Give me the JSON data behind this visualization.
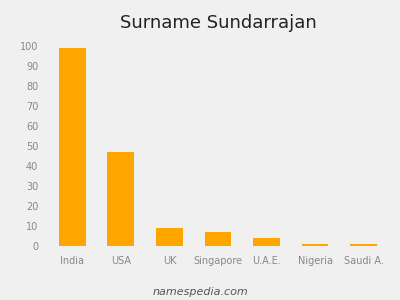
{
  "title": "Surname Sundarrajan",
  "categories": [
    "India",
    "USA",
    "UK",
    "Singapore",
    "U.A.E.",
    "Nigeria",
    "Saudi A."
  ],
  "values": [
    99,
    47,
    9,
    7,
    4,
    1,
    1
  ],
  "bar_color": "#FFA500",
  "ylim": [
    0,
    105
  ],
  "yticks": [
    0,
    10,
    20,
    30,
    40,
    50,
    60,
    70,
    80,
    90,
    100
  ],
  "grid_ticks": [
    20,
    40,
    60,
    80,
    100
  ],
  "background_color": "#f0f0f0",
  "title_fontsize": 13,
  "tick_fontsize": 7,
  "footer_text": "namespedia.com",
  "footer_fontsize": 8
}
